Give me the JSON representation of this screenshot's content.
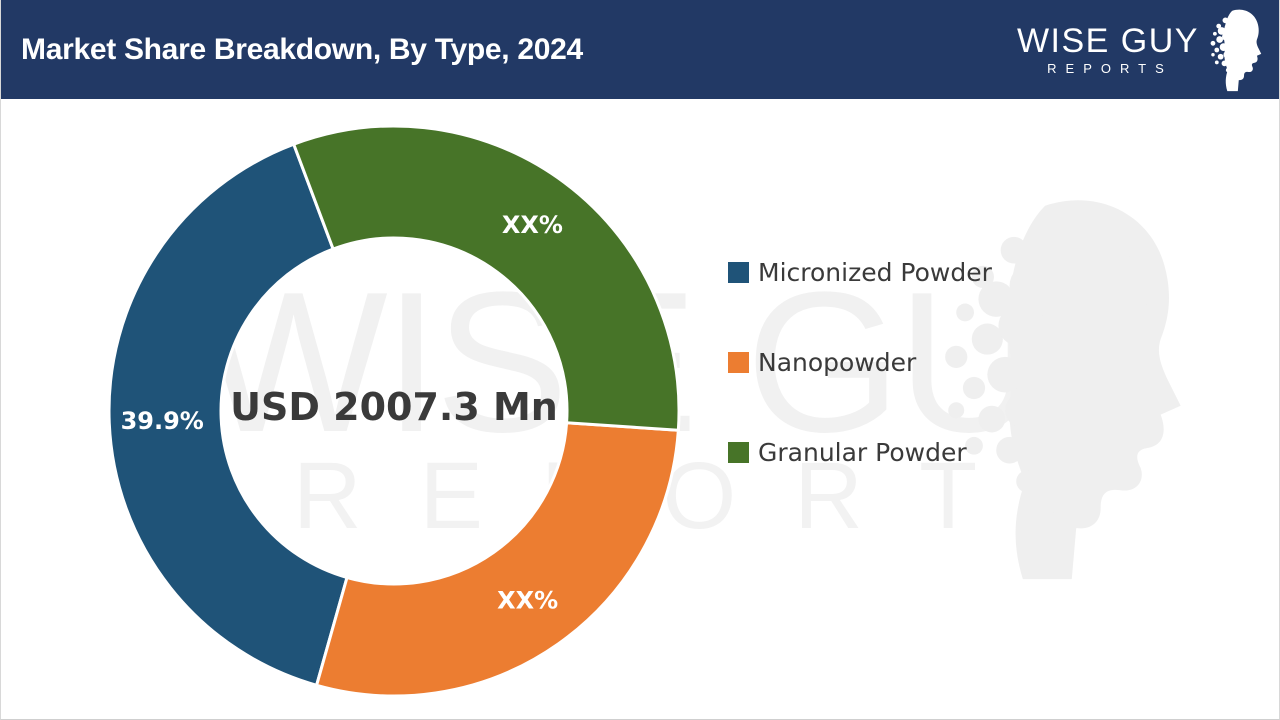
{
  "header": {
    "title": "Market Share Breakdown, By Type, 2024",
    "logo": {
      "wordmark": "WISE GUY",
      "subtitle": "REPORTS"
    }
  },
  "watermark": {
    "line1": "WISE GUY",
    "line2": "REPORTS"
  },
  "chart_data": {
    "type": "pie",
    "subtype": "donut",
    "title": "Market Share Breakdown, By Type, 2024",
    "year": "2024",
    "center_label": "USD 2007.3 Mn",
    "start_angle_deg": 110.6,
    "direction": "counterclockwise",
    "legend_position": "right",
    "slices": [
      {
        "label": "Micronized Powder",
        "value_label": "39.9%",
        "value_pct": 39.9,
        "color": "#1F5378"
      },
      {
        "label": "Nanopowder",
        "value_label": "XX%",
        "value_pct": 28.3,
        "color": "#EC7D31"
      },
      {
        "label": "Granular Powder",
        "value_label": "XX%",
        "value_pct": 31.8,
        "color": "#477428"
      }
    ]
  }
}
